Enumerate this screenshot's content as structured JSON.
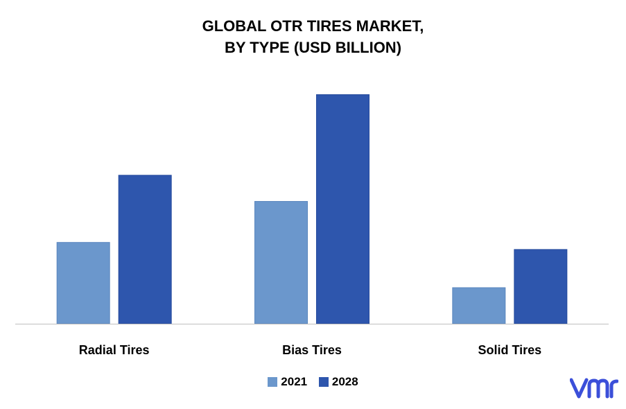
{
  "chart_data": {
    "type": "bar",
    "title_lines": [
      "GLOBAL OTR TIRES MARKET,",
      "BY TYPE (USD BILLION)"
    ],
    "categories": [
      "Radial Tires",
      "Bias Tires",
      "Solid Tires"
    ],
    "series": [
      {
        "name": "2021",
        "color": "#6b97cc",
        "values": [
          11.5,
          17.3,
          5.1
        ]
      },
      {
        "name": "2028",
        "color": "#2e56ad",
        "values": [
          21.0,
          32.4,
          10.5
        ]
      }
    ],
    "ylim": [
      0,
      35
    ],
    "grid": false,
    "legend_position": "bottom"
  },
  "logo": {
    "icon": "vmr-logo-icon",
    "color": "#3b4fd9"
  }
}
